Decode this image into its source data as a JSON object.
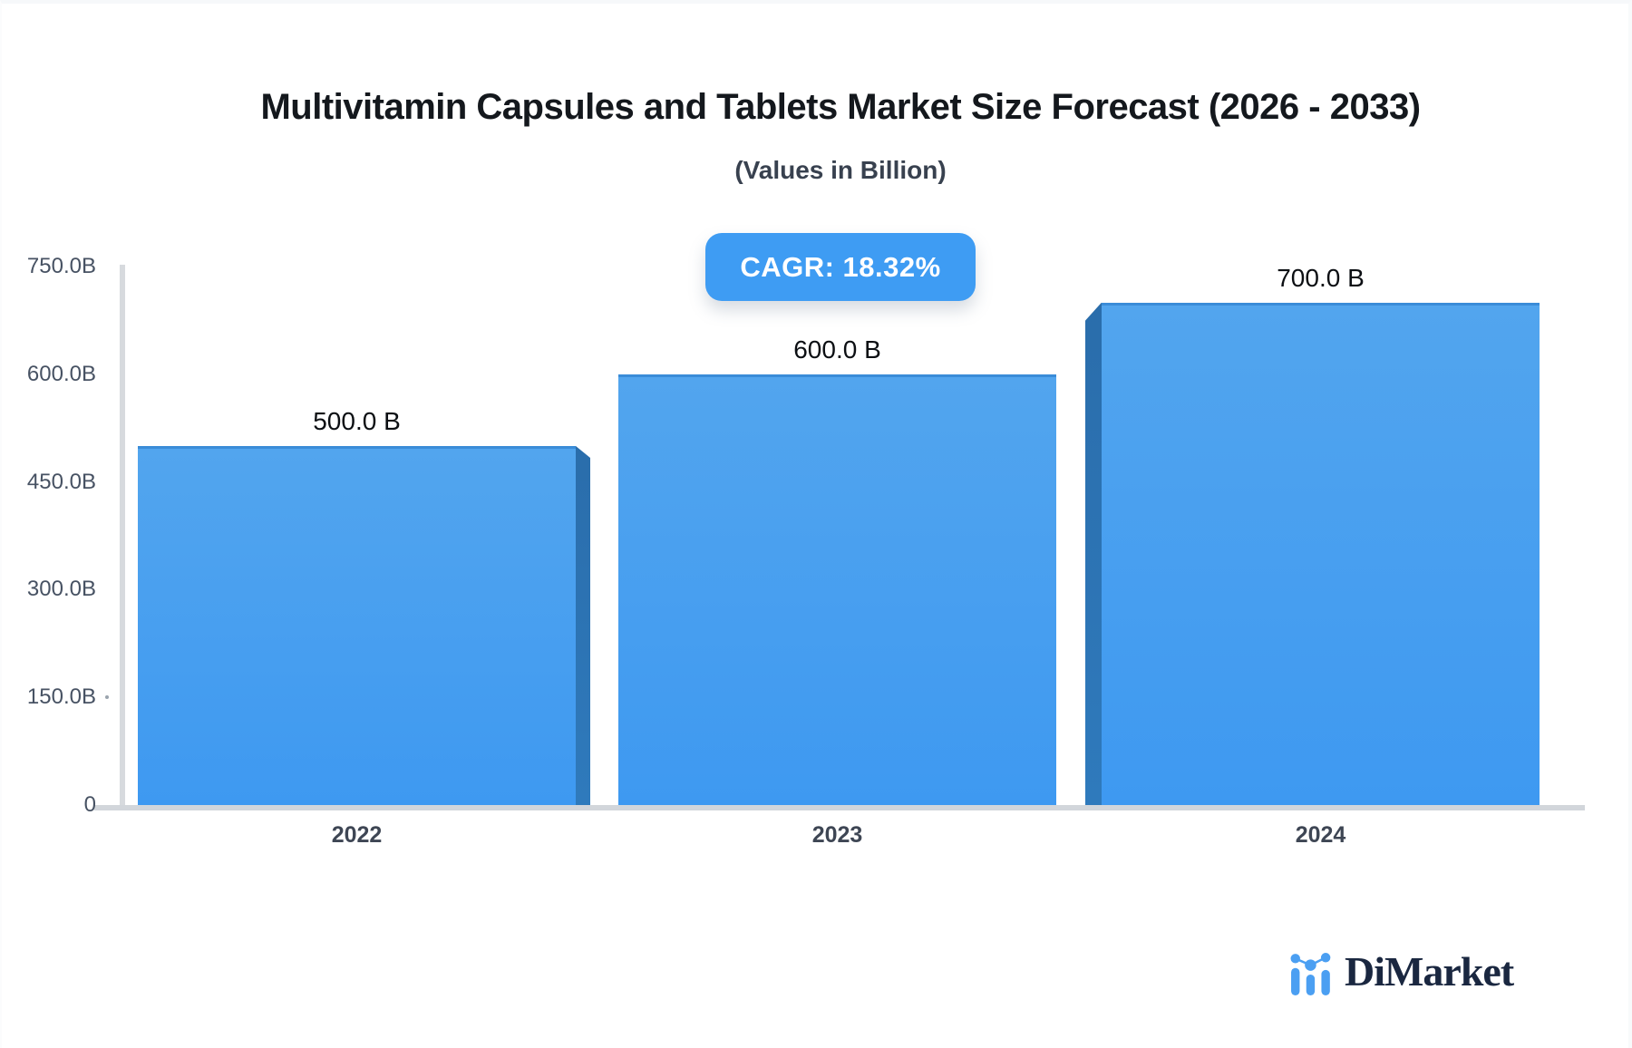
{
  "header": {
    "title": "Multivitamin Capsules and Tablets Market Size Forecast (2026 - 2033)",
    "subtitle": "(Values in Billion)",
    "cagr_label": "CAGR: 18.32%"
  },
  "chart_data": {
    "type": "bar",
    "title": "Multivitamin Capsules and Tablets Market Size Forecast (2026 - 2033)",
    "subtitle": "(Values in Billion)",
    "unit": "Billion",
    "cagr_percent": 18.32,
    "categories": [
      "2022",
      "2023",
      "2024"
    ],
    "values": [
      500,
      600,
      700
    ],
    "value_labels": [
      "500.0 B",
      "600.0 B",
      "700.0 B"
    ],
    "ylim": [
      0,
      750
    ],
    "y_ticks": [
      {
        "value": 750,
        "label": "750.0B"
      },
      {
        "value": 600,
        "label": "600.0B"
      },
      {
        "value": 450,
        "label": "450.0B"
      },
      {
        "value": 300,
        "label": "300.0B"
      },
      {
        "value": 150,
        "label": "150.0B"
      },
      {
        "value": 0,
        "label": "0"
      }
    ],
    "grid": false,
    "legend": false,
    "colors": {
      "bar_face": "#429BF0",
      "bar_side": "#2E74B6",
      "accent_badge": "#3E9CF3",
      "axis_line": "#D7DADE"
    }
  },
  "branding": {
    "logo_text": "DiMarket",
    "logo_icon": "mini-bar-line-chart-icon"
  }
}
